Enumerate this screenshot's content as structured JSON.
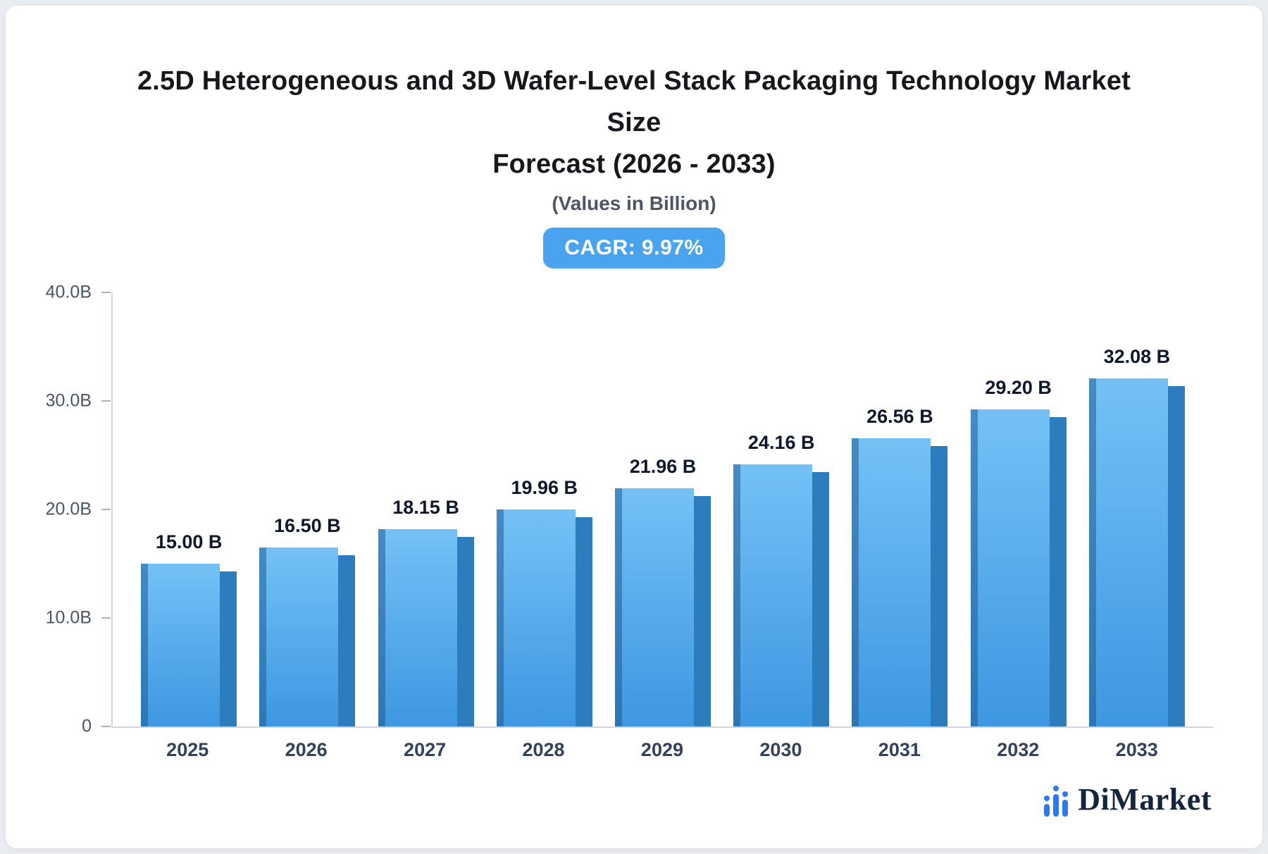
{
  "title": {
    "line1": "2.5D Heterogeneous and 3D Wafer-Level Stack Packaging Technology Market Size",
    "line2": "Forecast (2026 - 2033)"
  },
  "subtitle": "(Values in Billion)",
  "badge": {
    "label": "CAGR: 9.97%",
    "bg": "#4aa3ef"
  },
  "logo": {
    "brand": "DiMarket",
    "icon": "bar-chart-icon",
    "icon_color": "#2f78e8",
    "text_color": "#14253c"
  },
  "chart_data": {
    "type": "bar",
    "title": "2.5D Heterogeneous and 3D Wafer-Level Stack Packaging Technology Market Size Forecast (2026 - 2033)",
    "subtitle": "(Values in Billion)",
    "annotation": "CAGR: 9.97%",
    "categories": [
      "2025",
      "2026",
      "2027",
      "2028",
      "2029",
      "2030",
      "2031",
      "2032",
      "2033"
    ],
    "values": [
      15.0,
      16.5,
      18.15,
      19.96,
      21.96,
      24.16,
      26.56,
      29.2,
      32.08
    ],
    "value_labels": [
      "15.00 B",
      "16.50 B",
      "18.15 B",
      "19.96 B",
      "21.96 B",
      "24.16 B",
      "26.56 B",
      "29.20 B",
      "32.08 B"
    ],
    "xlabel": "",
    "ylabel": "",
    "ylim": [
      0,
      40
    ],
    "yticks": [
      {
        "value": 0,
        "label": "0"
      },
      {
        "value": 10,
        "label": "10.0B"
      },
      {
        "value": 20,
        "label": "20.0B"
      },
      {
        "value": 30,
        "label": "30.0B"
      },
      {
        "value": 40,
        "label": "40.0B"
      }
    ],
    "grid": false,
    "legend": "none",
    "colors": {
      "face_top": "#74c1f6",
      "face_bottom": "#3e97e1",
      "side": "#2d7cbe",
      "edge": "#1f5c94",
      "axis": "#cfd6de"
    }
  }
}
